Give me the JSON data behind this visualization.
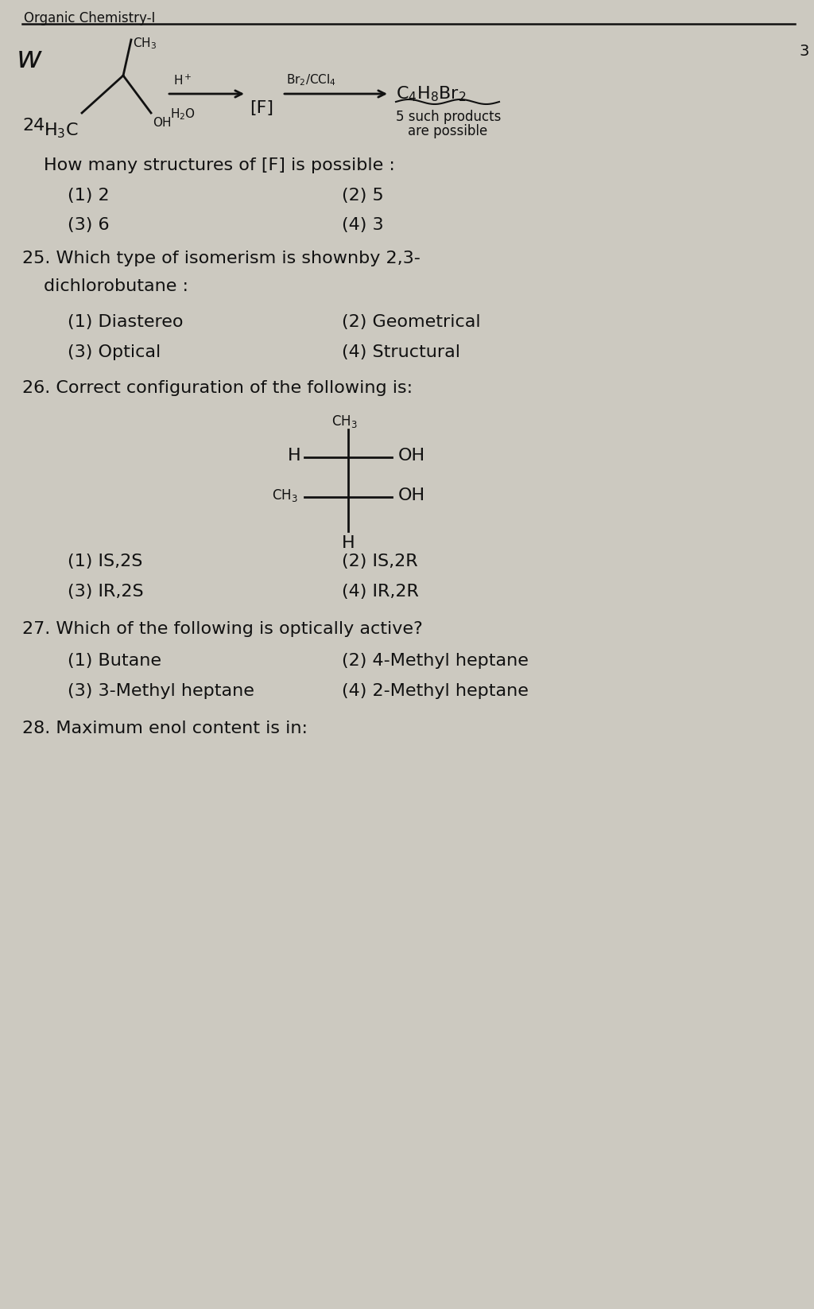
{
  "bg_color": "#ccc9c0",
  "text_color": "#111111",
  "title": "Organic Chemistry-I",
  "title_fontsize": 12,
  "page_number": "3",
  "q24_question": "How many structures of [F] is possible :",
  "q24_opt1": "(1) 2",
  "q24_opt2": "(2) 5",
  "q24_opt3": "(3) 6",
  "q24_opt4": "(4) 3",
  "q25_line1": "25. Which type of isomerism is shownby 2,3-",
  "q25_line2": "      dichlorobutane :",
  "q25_opt1": "(1) Diastereo",
  "q25_opt2": "(2) Geometrical",
  "q25_opt3": "(3) Optical",
  "q25_opt4": "(4) Structural",
  "q26_question": "26. Correct configuration of the following is:",
  "q26_opt1": "(1) IS,2S",
  "q26_opt2": "(2) IS,2R",
  "q26_opt3": "(3) IR,2S",
  "q26_opt4": "(4) IR,2R",
  "q27_question": "27. Which of the following is optically active?",
  "q27_opt1": "(1) Butane",
  "q27_opt2": "(2) 4-Methyl heptane",
  "q27_opt3": "(3) 3-Methyl heptane",
  "q27_opt4": "(4) 2-Methyl heptane",
  "q28_question": "28. Maximum enol content is in:"
}
